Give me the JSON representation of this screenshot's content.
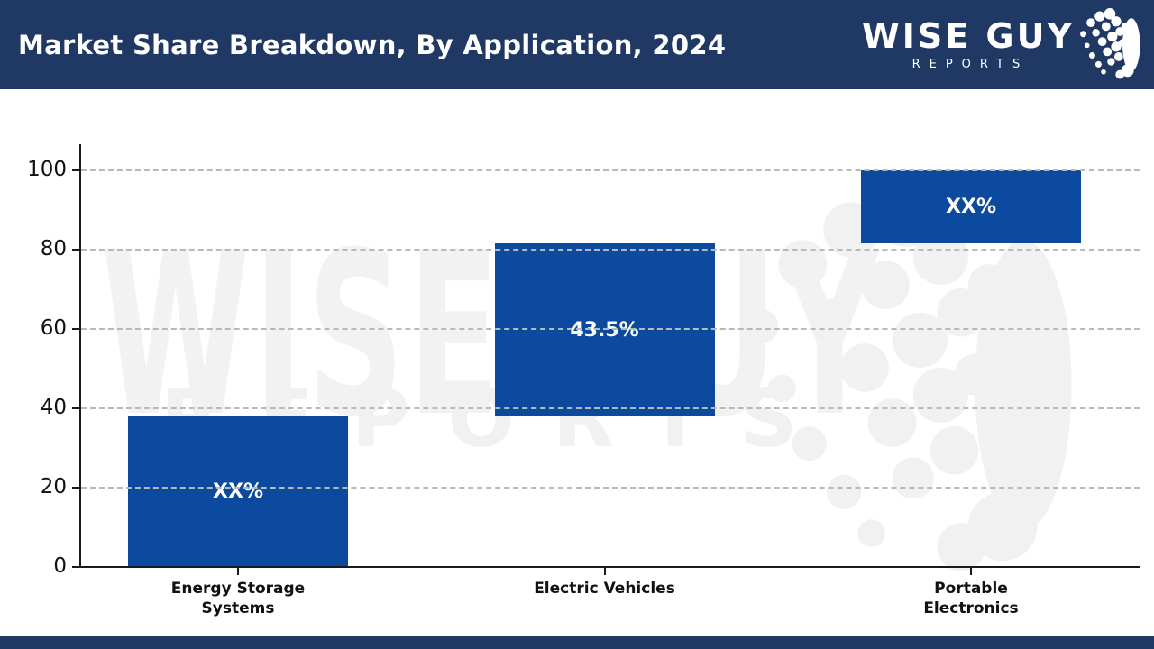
{
  "header": {
    "title": "Market Share Breakdown, By Application, 2024",
    "logo": {
      "name": "WISE GUY",
      "sub": "REPORTS"
    }
  },
  "watermark": {
    "name": "WISE GUY",
    "sub": "REPORTS"
  },
  "chart_data": {
    "type": "bar",
    "subtype": "waterfall",
    "title": "Market Share Breakdown, By Application, 2024",
    "categories": [
      "Energy Storage Systems",
      "Electric Vehicles",
      "Portable Electronics"
    ],
    "category_lines": [
      [
        "Energy Storage",
        "Systems"
      ],
      [
        "Electric Vehicles"
      ],
      [
        "Portable",
        "Electronics"
      ]
    ],
    "segments": [
      {
        "category": "Energy Storage Systems",
        "start": 0,
        "end": 38,
        "label": "XX%"
      },
      {
        "category": "Electric Vehicles",
        "start": 38,
        "end": 81.5,
        "label": "43.5%"
      },
      {
        "category": "Portable Electronics",
        "start": 81.5,
        "end": 100,
        "label": "XX%"
      }
    ],
    "yticks": [
      0,
      20,
      40,
      60,
      80,
      100
    ],
    "ylim": [
      0,
      106
    ],
    "xlabel": "",
    "ylabel": "",
    "grid": "horizontal-dashed",
    "legend": "none",
    "bar_color": "#0b4a9e",
    "value_label_color": "#ffffff"
  },
  "colors": {
    "header_bg": "#1f3864",
    "footer_bg": "#1f3864",
    "bar": "#0b4a9e",
    "axis": "#1a1a1a",
    "grid": "#b9b9b9",
    "watermark": "#f2f2f2",
    "background": "#ffffff"
  }
}
